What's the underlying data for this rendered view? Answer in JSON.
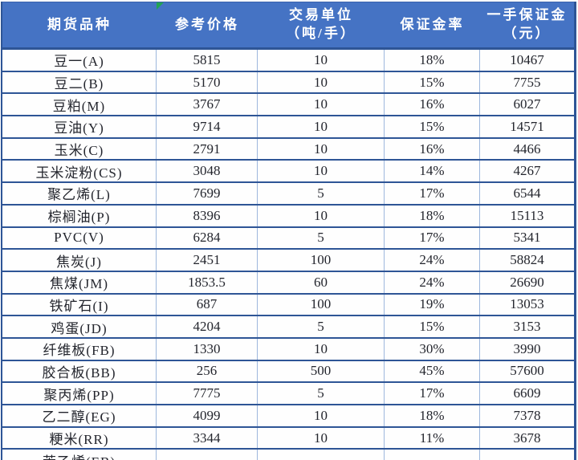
{
  "table": {
    "columns": [
      {
        "key": "variety",
        "label": "期货品种"
      },
      {
        "key": "price",
        "label": "参考价格"
      },
      {
        "key": "unit",
        "label": "交易单位\n（吨/手）"
      },
      {
        "key": "margin_rate",
        "label": "保证金率"
      },
      {
        "key": "margin_per_lot",
        "label": "一手保证金\n（元）"
      }
    ],
    "rows": [
      [
        "豆一(A)",
        "5815",
        "10",
        "18%",
        "10467"
      ],
      [
        "豆二(B)",
        "5170",
        "10",
        "15%",
        "7755"
      ],
      [
        "豆粕(M)",
        "3767",
        "10",
        "16%",
        "6027"
      ],
      [
        "豆油(Y)",
        "9714",
        "10",
        "15%",
        "14571"
      ],
      [
        "玉米(C)",
        "2791",
        "10",
        "16%",
        "4466"
      ],
      [
        "玉米淀粉(CS)",
        "3048",
        "10",
        "14%",
        "4267"
      ],
      [
        "聚乙烯(L)",
        "7699",
        "5",
        "17%",
        "6544"
      ],
      [
        "棕榈油(P)",
        "8396",
        "10",
        "18%",
        "15113"
      ],
      [
        "PVC(V)",
        "6284",
        "5",
        "17%",
        "5341"
      ],
      [
        "焦炭(J)",
        "2451",
        "100",
        "24%",
        "58824"
      ],
      [
        "焦煤(JM)",
        "1853.5",
        "60",
        "24%",
        "26690"
      ],
      [
        "铁矿石(I)",
        "687",
        "100",
        "19%",
        "13053"
      ],
      [
        "鸡蛋(JD)",
        "4204",
        "5",
        "15%",
        "3153"
      ],
      [
        "纤维板(FB)",
        "1330",
        "10",
        "30%",
        "3990"
      ],
      [
        "胶合板(BB)",
        "256",
        "500",
        "45%",
        "57600"
      ],
      [
        "聚丙烯(PP)",
        "7775",
        "5",
        "17%",
        "6609"
      ],
      [
        "乙二醇(EG)",
        "4099",
        "10",
        "18%",
        "7378"
      ],
      [
        "粳米(RR)",
        "3344",
        "10",
        "11%",
        "3678"
      ],
      [
        "苯乙烯(EB)",
        "",
        "",
        "",
        ""
      ]
    ],
    "icons": {
      "cell_flag": "green-triangle-indicator"
    },
    "colors": {
      "header_bg": "#4573c4",
      "header_text": "#ffffff",
      "row_border": "#2e5596",
      "cell_border": "#9db7dd",
      "body_text": "#23252d",
      "flag_green": "#21a353"
    }
  }
}
